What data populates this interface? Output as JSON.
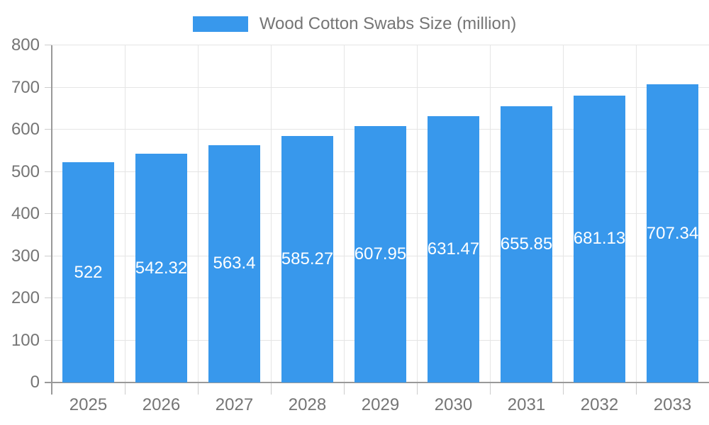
{
  "legend": {
    "label": "Wood Cotton Swabs Size (million)"
  },
  "colors": {
    "bar": "#3898EC",
    "grid": "#E5E5E5",
    "axis": "#999999",
    "tick": "#CCCCCC",
    "axis_text": "#757575",
    "value_text": "#FFFFFF"
  },
  "chart_data": {
    "type": "bar",
    "title": "",
    "xlabel": "",
    "ylabel": "",
    "categories": [
      "2025",
      "2026",
      "2027",
      "2028",
      "2029",
      "2030",
      "2031",
      "2032",
      "2033"
    ],
    "values": [
      522,
      542.32,
      563.4,
      585.27,
      607.95,
      631.47,
      655.85,
      681.13,
      707.34
    ],
    "value_labels_text": [
      "522",
      "542.32",
      "563.4",
      "585.27",
      "607.95",
      "631.47",
      "655.85",
      "681.13",
      "707.34"
    ],
    "series": [
      {
        "name": "Wood Cotton Swabs Size (million)",
        "values": [
          522,
          542.32,
          563.4,
          585.27,
          607.95,
          631.47,
          655.85,
          681.13,
          707.34
        ]
      }
    ],
    "ylim": [
      0,
      800
    ],
    "ytick_step": 100,
    "ytick_labels": [
      "0",
      "100",
      "200",
      "300",
      "400",
      "500",
      "600",
      "700",
      "800"
    ],
    "grid": true,
    "legend_position": "top-center",
    "value_label_position": "inside-middle"
  }
}
